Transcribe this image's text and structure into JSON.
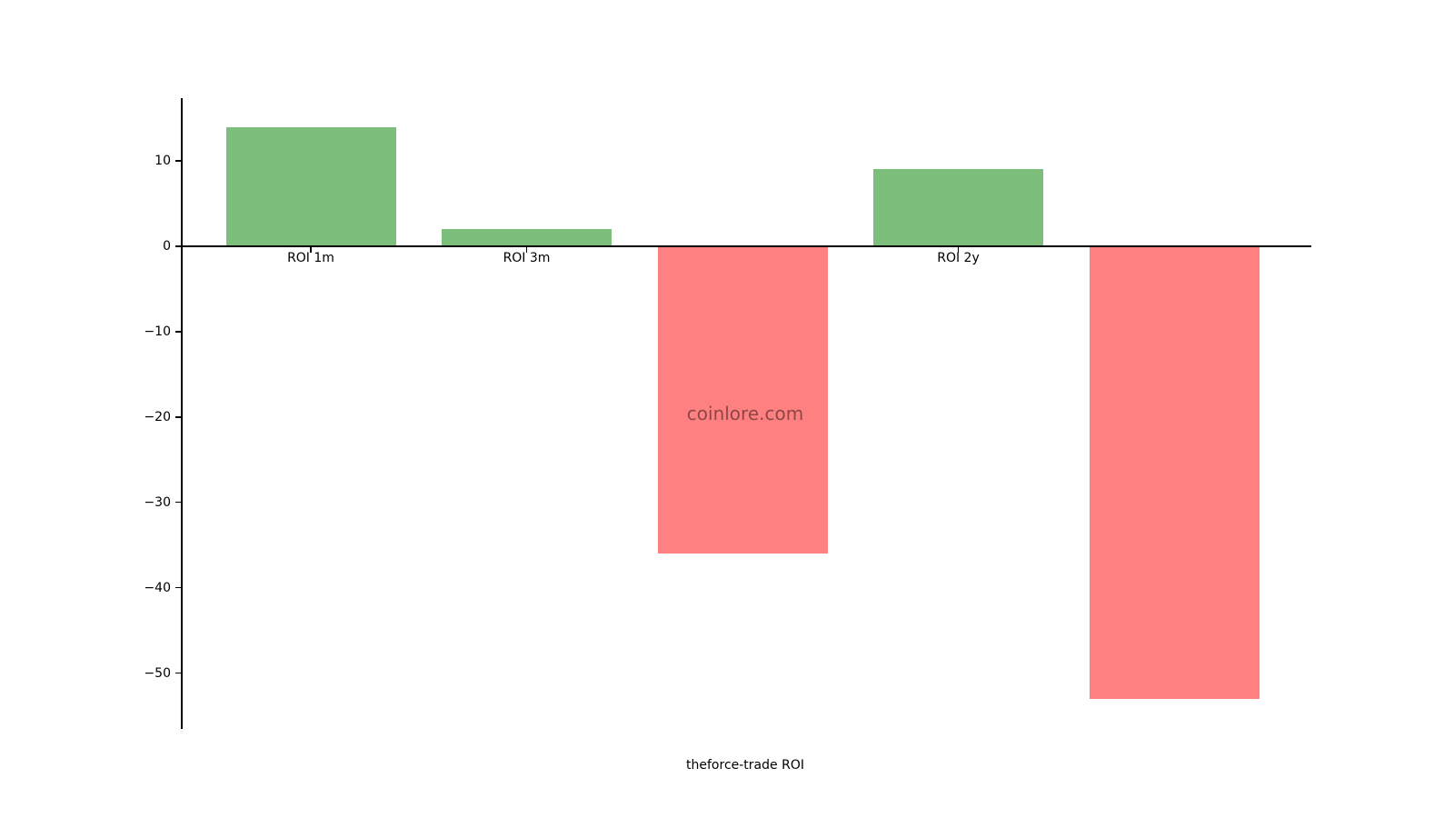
{
  "figure": {
    "background": "#ffffff",
    "watermark": "coinlore.com",
    "xlabel": "theforce-trade ROI"
  },
  "chart_data": {
    "type": "bar",
    "title": "theforce-trade ROI",
    "title_position": "bottom",
    "xlabel": "theforce-trade ROI",
    "ylabel": "",
    "categories": [
      "ROI 1m",
      "ROI 3m",
      "",
      "ROI 2y",
      ""
    ],
    "values": [
      14,
      2,
      -36,
      9,
      -53
    ],
    "bar_colors": [
      "#7cbe7c",
      "#7cbe7c",
      "#ff8080",
      "#7cbe7c",
      "#ff8080"
    ],
    "positive_color": "#7cbe7c",
    "negative_color": "#ff8080",
    "axis_color": "#000000",
    "yticks": [
      10,
      0,
      -10,
      -20,
      -30,
      -40,
      -50
    ],
    "ylim": [
      -56.5,
      17.4
    ],
    "grid": false,
    "legend": false,
    "watermark": "coinlore.com",
    "note": "x tick labels for the two negative (red) bars are hidden behind the bars in the rendered image"
  }
}
